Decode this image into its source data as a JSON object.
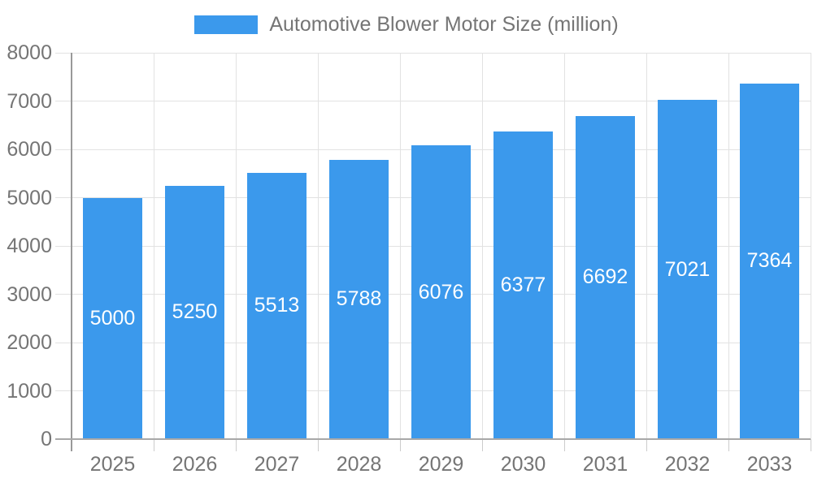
{
  "chart_data": {
    "type": "bar",
    "legend_label": "Automotive Blower Motor Size (million)",
    "legend_position": "top",
    "categories": [
      "2025",
      "2026",
      "2027",
      "2028",
      "2029",
      "2030",
      "2031",
      "2032",
      "2033"
    ],
    "series": [
      {
        "name": "Automotive Blower Motor Size (million)",
        "values": [
          5000,
          5250,
          5513,
          5788,
          6076,
          6377,
          6692,
          7021,
          7364
        ]
      }
    ],
    "value_labels_shown": true,
    "xlabel": "",
    "ylabel": "",
    "ylim": [
      0,
      8000
    ],
    "ytick_step": 1000,
    "ytick_labels": [
      "0",
      "1000",
      "2000",
      "3000",
      "4000",
      "5000",
      "6000",
      "7000",
      "8000"
    ],
    "grid": true,
    "colors": {
      "bar": "#3B99EC",
      "gridline": "#E2E2E2",
      "tick": "#CCCCCC",
      "axis_line": "#999999",
      "baseline": "#A8A8A8",
      "axis_text": "#757575",
      "legend_text": "#757575",
      "value_text": "#FFFFFF",
      "background": "#FFFFFF"
    }
  }
}
